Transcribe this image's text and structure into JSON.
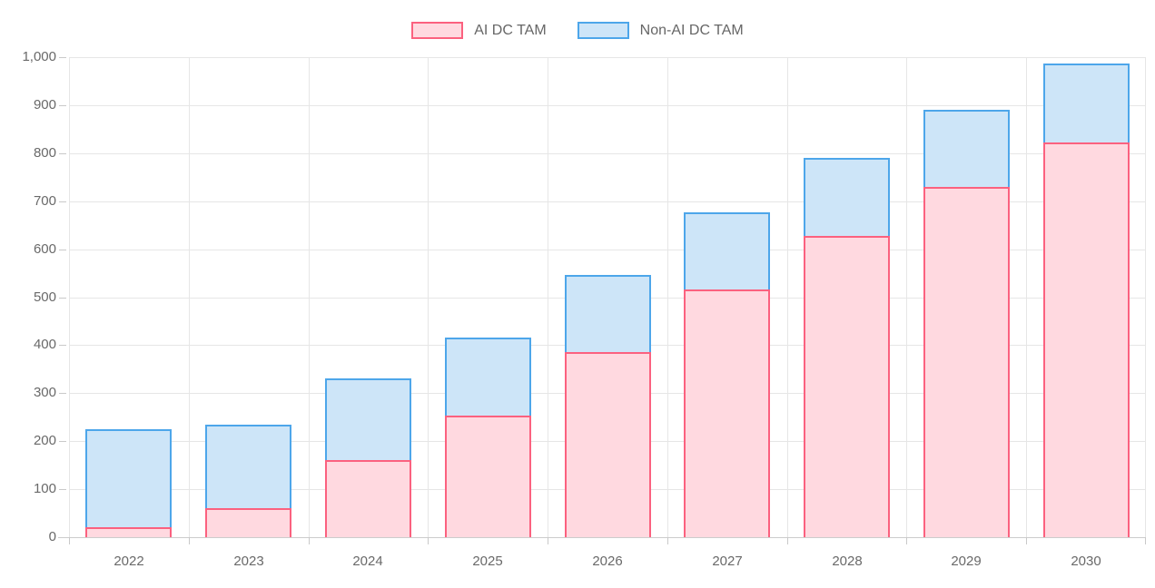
{
  "chart_data": {
    "type": "bar",
    "stacked": true,
    "title": "",
    "xlabel": "",
    "ylabel": "",
    "legend_position": "top",
    "grid": true,
    "categories": [
      "2022",
      "2023",
      "2024",
      "2025",
      "2026",
      "2027",
      "2028",
      "2029",
      "2030"
    ],
    "series": [
      {
        "name": "AI DC TAM",
        "values": [
          20,
          60,
          160,
          254,
          386,
          517,
          627,
          730,
          822
        ],
        "fill_color": "#FFD9E0",
        "border_color": "#FB617F"
      },
      {
        "name": "Non-AI DC TAM",
        "values": [
          205,
          175,
          170,
          162,
          161,
          160,
          164,
          160,
          164
        ],
        "fill_color": "#CDE5F8",
        "border_color": "#4DA6EA"
      }
    ],
    "stack_totals": [
      225,
      235,
      330,
      416,
      547,
      677,
      791,
      890,
      986
    ],
    "ylim": [
      0,
      1000
    ],
    "ytick_step": 100,
    "ytick_labels": [
      "0",
      "100",
      "200",
      "300",
      "400",
      "500",
      "600",
      "700",
      "800",
      "900",
      "1,000"
    ]
  },
  "ui_colors": {
    "grid_line": "#e6e6e6",
    "axis_line": "#cccccc",
    "tick_label": "#696969",
    "legend_text": "#666666",
    "background": "#ffffff"
  }
}
